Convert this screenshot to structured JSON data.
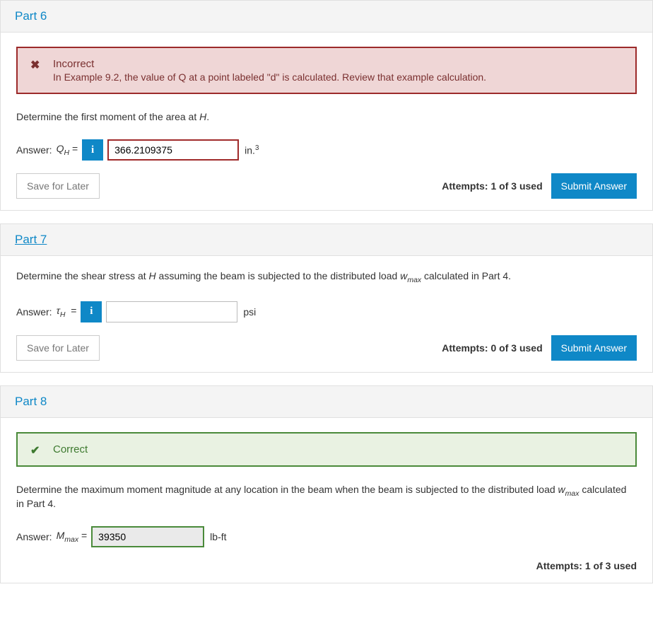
{
  "colors": {
    "accent": "#0f88c7",
    "error_border": "#9c2a2a",
    "error_bg": "#efd6d6",
    "error_text": "#7a3030",
    "success_border": "#4a8a3a",
    "success_bg": "#e9f2e2",
    "success_text": "#3e7a30",
    "panel_header_bg": "#f4f4f4",
    "border": "#e0e0e0"
  },
  "labels": {
    "save": "Save for Later",
    "submit": "Submit Answer",
    "info": "i",
    "answer_prefix": "Answer:"
  },
  "parts": {
    "p6": {
      "title": "Part 6",
      "feedback": {
        "status": "incorrect",
        "title": "Incorrect",
        "message": "In Example 9.2, the value of Q at a point labeled \"d\" is calculated.  Review that example calculation."
      },
      "prompt_html": "Determine the first moment of the area at <em class=\"var\">H</em>.",
      "symbol_html": "<em class=\"var\">Q<sub>H</sub></em> =",
      "input_value": "366.2109375",
      "input_state": "wrong",
      "unit_html": "in.<sup>3</sup>",
      "attempts": "Attempts: 1 of 3 used",
      "show_submit": true,
      "show_save": true
    },
    "p7": {
      "title": "Part 7",
      "title_underlined": true,
      "prompt_html": "Determine the shear stress at <em class=\"var\">H</em> assuming the beam is subjected to the distributed load <em class=\"var\">w<sub>max</sub></em> calculated in Part 4.",
      "symbol_html": "<em class=\"var\">τ<sub>H</sub></em> &nbsp;=",
      "input_value": "",
      "input_state": "normal",
      "unit_html": "psi",
      "attempts": "Attempts: 0 of 3 used",
      "show_submit": true,
      "show_save": true
    },
    "p8": {
      "title": "Part 8",
      "feedback": {
        "status": "correct",
        "title": "Correct"
      },
      "prompt_html": "Determine the maximum moment magnitude at any location in the beam when the beam is subjected to the distributed load <em class=\"var\">w<sub>max</sub></em> calculated in Part 4.",
      "symbol_html": "<em class=\"var\">M<sub>max</sub></em> =",
      "input_value": "39350",
      "input_state": "readonly-correct",
      "unit_html": "lb-ft",
      "attempts": "Attempts: 1 of 3 used",
      "show_submit": false,
      "show_save": false
    }
  }
}
